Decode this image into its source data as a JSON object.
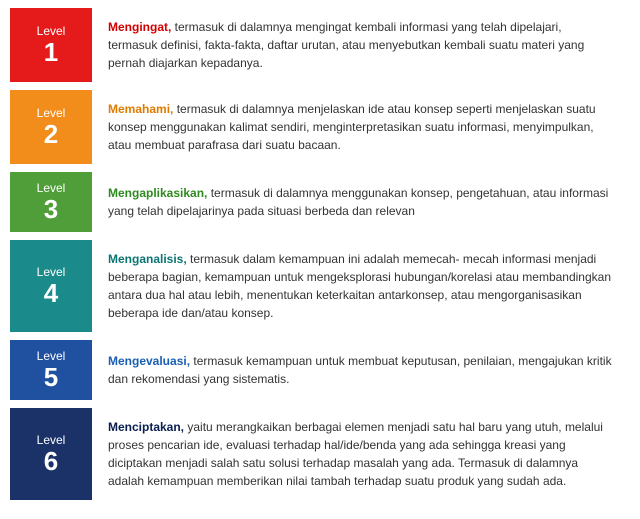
{
  "level_label": "Level",
  "levels": [
    {
      "num": "1",
      "box_color": "#e51b1b",
      "term": "Mengingat,",
      "term_color": "#d40000",
      "text": " termasuk di dalamnya mengingat kembali informasi yang telah dipelajari, termasuk definisi, fakta-fakta, daftar urutan, atau menyebutkan kembali suatu materi yang pernah diajarkan kepadanya."
    },
    {
      "num": "2",
      "box_color": "#f28c1b",
      "term": "Memahami,",
      "term_color": "#e07b00",
      "text": " termasuk di dalamnya menjelaskan ide atau konsep seperti menjelaskan suatu konsep menggunakan kalimat sendiri, menginterpretasikan suatu informasi, menyimpulkan, atau membuat parafrasa dari suatu bacaan."
    },
    {
      "num": "3",
      "box_color": "#4f9e3a",
      "term": "Mengaplikasikan,",
      "term_color": "#2f8a1f",
      "text": " termasuk di dalamnya menggunakan konsep, pengetahuan, atau informasi yang telah dipelajarinya pada situasi berbeda dan relevan"
    },
    {
      "num": "4",
      "box_color": "#1b8a8a",
      "term": "Menganalisis,",
      "term_color": "#0d7474",
      "text": " termasuk dalam kemampuan ini adalah memecah- mecah informasi menjadi beberapa bagian, kemampuan untuk mengeksplorasi hubungan/korelasi atau membandingkan antara dua hal atau lebih, menentukan keterkaitan antarkonsep, atau mengorganisasikan beberapa ide dan/atau konsep."
    },
    {
      "num": "5",
      "box_color": "#2050a0",
      "term": "Mengevaluasi,",
      "term_color": "#1a5fb4",
      "text": " termasuk kemampuan untuk membuat keputusan, penilaian, mengajukan kritik dan rekomendasi yang sistematis."
    },
    {
      "num": "6",
      "box_color": "#1a3268",
      "term": "Menciptakan,",
      "term_color": "#0a1f50",
      "text": " yaitu merangkaikan berbagai elemen menjadi satu hal baru yang utuh, melalui proses pencarian ide, evaluasi terhadap hal/ide/benda yang ada sehingga kreasi yang diciptakan menjadi salah satu solusi terhadap masalah yang ada. Termasuk di dalamnya adalah kemampuan memberikan nilai tambah terhadap suatu produk yang sudah ada."
    }
  ]
}
